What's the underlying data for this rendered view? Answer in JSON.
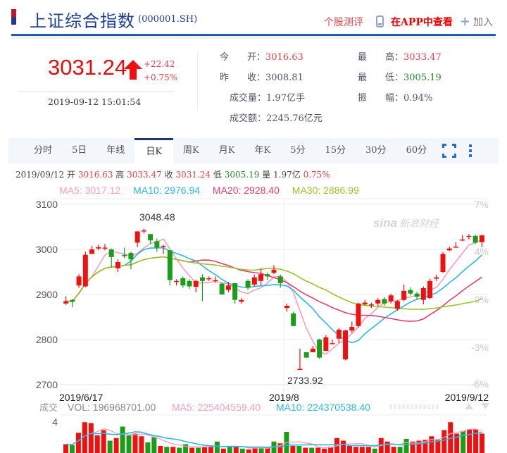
{
  "header": {
    "title": "上证综合指数",
    "code": "(000001.SH)",
    "review_link": "个股测评",
    "app_link": "在APP中查看",
    "add_label": "加入"
  },
  "quote": {
    "price": "3031.24",
    "change": "+22.42",
    "change_pct": "+0.75%",
    "datetime": "2019-09-12 15:01:54",
    "open_label": "今　　开：",
    "open": "3016.63",
    "high_label": "最　　高：",
    "high": "3033.47",
    "prev_close_label": "昨　　收：",
    "prev_close": "3008.81",
    "low_label": "最　　低：",
    "low": "3005.19",
    "volume_label": "成交量：",
    "volume": "1.97亿手",
    "amplitude_label": "振　　幅：",
    "amplitude": "0.94%",
    "turnover_label": "成交额：",
    "turnover": "2245.76亿元"
  },
  "tabs": [
    {
      "label": "分时"
    },
    {
      "label": "5日"
    },
    {
      "label": "年线"
    },
    {
      "label": "日K",
      "active": true
    },
    {
      "label": "周K"
    },
    {
      "label": "月K"
    },
    {
      "label": "年K"
    },
    {
      "label": "5分"
    },
    {
      "label": "15分"
    },
    {
      "label": "30分"
    },
    {
      "label": "60分"
    }
  ],
  "info": {
    "date": "2019/09/12",
    "open_label": "开",
    "open": "3016.63",
    "high_label": "高",
    "high": "3033.47",
    "close_label": "收",
    "close": "3031.24",
    "low_label": "低",
    "low": "3005.19",
    "vol_label": "量",
    "vol": "1.97亿",
    "pct": "0.75%",
    "ma5": "MA5: 3017.12",
    "ma10": "MA10: 2976.94",
    "ma20": "MA20: 2928.40",
    "ma30": "MA30: 2886.99"
  },
  "volume_panel": {
    "label": "成交",
    "vol": "VOL: 196968701.00",
    "ma5": "MA5: 225404559.40",
    "ma10": "MA10: 224370538.40",
    "y_tick": "4"
  },
  "watermark": "新浪财经",
  "colors": {
    "up": "#f01010",
    "down": "#1a9e1a",
    "ma5": "#f59fb8",
    "ma10": "#2ab8e0",
    "ma20": "#e0406e",
    "ma30": "#9cc22a"
  },
  "chart_data": {
    "type": "candlestick",
    "title": "上证综合指数 日K",
    "x_labels": [
      "2019/6/17",
      "2019/8",
      "2019/9/12"
    ],
    "y_ticks": [
      2700,
      2800,
      2900,
      3000,
      3100
    ],
    "y_right_ticks": [
      "7%",
      "4%",
      "0%",
      "-3%",
      "-6%"
    ],
    "ylim": [
      2700,
      3100
    ],
    "annotations": [
      {
        "label": "3048.48",
        "type": "max"
      },
      {
        "label": "2733.92",
        "type": "min"
      }
    ],
    "candles": [
      [
        2880,
        2885,
        2896,
        2877
      ],
      [
        2888,
        2884,
        2890,
        2872
      ],
      [
        2920,
        2940,
        2945,
        2915
      ],
      [
        2918,
        2988,
        2995,
        2916
      ],
      [
        2990,
        3000,
        3008,
        2990
      ],
      [
        3002,
        3005,
        3010,
        2998
      ],
      [
        3004,
        3004,
        3012,
        2998
      ],
      [
        3000,
        2983,
        3002,
        2960
      ],
      [
        2958,
        2972,
        2978,
        2950
      ],
      [
        2988,
        2985,
        3004,
        2980
      ],
      [
        2992,
        2978,
        2995,
        2956
      ],
      [
        3015,
        3040,
        3040,
        3005
      ],
      [
        3042,
        3042,
        3046,
        3035
      ],
      [
        3034,
        3020,
        3034,
        3012
      ],
      [
        3018,
        3004,
        3024,
        2995
      ],
      [
        3006,
        3008,
        3010,
        2990
      ],
      [
        2998,
        2932,
        2998,
        2920
      ],
      [
        2930,
        2930,
        2934,
        2920
      ],
      [
        2936,
        2920,
        2940,
        2915
      ],
      [
        2930,
        2918,
        2934,
        2912
      ],
      [
        2917,
        2930,
        2932,
        2905
      ],
      [
        2938,
        2930,
        2945,
        2885
      ],
      [
        2936,
        2936,
        2940,
        2930
      ],
      [
        2932,
        2932,
        2940,
        2926
      ],
      [
        2924,
        2900,
        2926,
        2900
      ],
      [
        2910,
        2920,
        2928,
        2905
      ],
      [
        2925,
        2888,
        2925,
        2880
      ],
      [
        2884,
        2888,
        2892,
        2880
      ],
      [
        2930,
        2915,
        2934,
        2910
      ],
      [
        2922,
        2938,
        2944,
        2918
      ],
      [
        2930,
        2945,
        2958,
        2920
      ],
      [
        2945,
        2940,
        2948,
        2932
      ],
      [
        2948,
        2955,
        2965,
        2945
      ],
      [
        2940,
        2925,
        2944,
        2915
      ],
      [
        2870,
        2875,
        2880,
        2862
      ],
      [
        2858,
        2830,
        2862,
        2830
      ],
      [
        2735,
        2735,
        2780,
        2734
      ],
      [
        2772,
        2760,
        2772,
        2760
      ],
      [
        2772,
        2780,
        2786,
        2772
      ],
      [
        2800,
        2760,
        2802,
        2757
      ],
      [
        2775,
        2805,
        2810,
        2775
      ],
      [
        2790,
        2792,
        2800,
        2790
      ],
      [
        2802,
        2822,
        2825,
        2792
      ],
      [
        2756,
        2820,
        2822,
        2754
      ],
      [
        2820,
        2828,
        2840,
        2815
      ],
      [
        2830,
        2880,
        2882,
        2826
      ],
      [
        2878,
        2882,
        2888,
        2876
      ],
      [
        2876,
        2878,
        2882,
        2870
      ],
      [
        2880,
        2888,
        2892,
        2874
      ],
      [
        2890,
        2880,
        2894,
        2875
      ],
      [
        2885,
        2898,
        2902,
        2880
      ],
      [
        2868,
        2885,
        2888,
        2864
      ],
      [
        2888,
        2908,
        2922,
        2885
      ],
      [
        2910,
        2902,
        2916,
        2898
      ],
      [
        2902,
        2895,
        2906,
        2888
      ],
      [
        2888,
        2914,
        2918,
        2878
      ],
      [
        2892,
        2930,
        2935,
        2890
      ],
      [
        2935,
        2938,
        2944,
        2930
      ],
      [
        2950,
        2990,
        2994,
        2948
      ],
      [
        2998,
        3002,
        3006,
        2996
      ],
      [
        3006,
        3006,
        3016,
        3004
      ],
      [
        3020,
        3022,
        3032,
        3018
      ],
      [
        3030,
        3030,
        3034,
        3022
      ],
      [
        3030,
        3015,
        3032,
        3012
      ],
      [
        3016,
        3031,
        3033,
        3005
      ]
    ],
    "volume_note": "Volume bars (100M units, max tick 4)"
  }
}
